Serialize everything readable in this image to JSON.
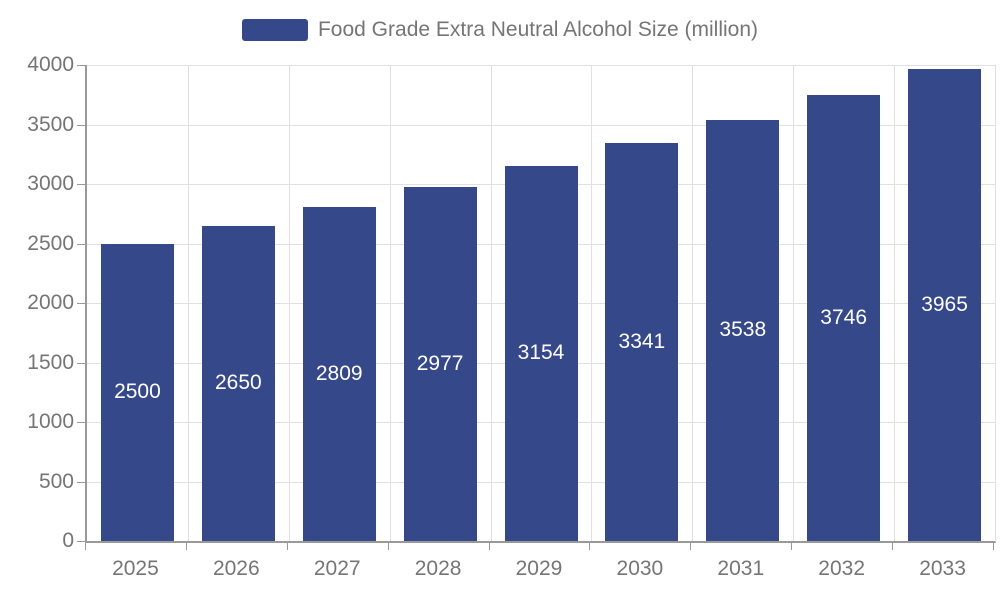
{
  "legend": {
    "label": "Food Grade Extra Neutral Alcohol Size (million)"
  },
  "chart_data": {
    "type": "bar",
    "title": "",
    "series_name": "Food Grade Extra Neutral Alcohol Size (million)",
    "categories": [
      "2025",
      "2026",
      "2027",
      "2028",
      "2029",
      "2030",
      "2031",
      "2032",
      "2033"
    ],
    "values": [
      2500,
      2650,
      2809,
      2977,
      3154,
      3341,
      3538,
      3746,
      3965
    ],
    "xlabel": "",
    "ylabel": "",
    "ylim": [
      0,
      4000
    ],
    "yticks": [
      0,
      500,
      1000,
      1500,
      2000,
      2500,
      3000,
      3500,
      4000
    ],
    "grid": true,
    "legend_position": "top-center",
    "bar_labels_inside": true,
    "colors": {
      "bar": "#35488a",
      "bar_label": "#ffffff",
      "axis_text": "#757575",
      "grid_line": "#e0e0e0",
      "axis_line": "#999999"
    }
  }
}
